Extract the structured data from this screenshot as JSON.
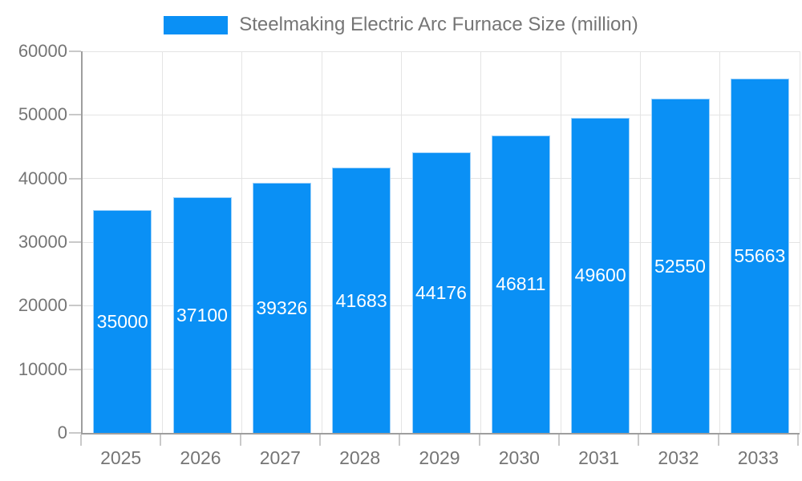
{
  "legend": {
    "label": "Steelmaking Electric Arc Furnace Size (million)"
  },
  "colors": {
    "bar_fill": "#0a90f5",
    "bar_border": "#a0d2fa",
    "bar_label_text": "#ffffff",
    "axis_line": "#9e9e9e",
    "tick_mark": "#c9c9c9",
    "gridline": "#e4e4e4",
    "tick_label_text": "#757575",
    "legend_text": "#757575",
    "background": "#ffffff"
  },
  "chart_data": {
    "type": "bar",
    "title": "Steelmaking Electric Arc Furnace Size (million)",
    "categories": [
      "2025",
      "2026",
      "2027",
      "2028",
      "2029",
      "2030",
      "2031",
      "2032",
      "2033"
    ],
    "values": [
      35000,
      37100,
      39326,
      41683,
      44176,
      46811,
      49600,
      52550,
      55663
    ],
    "series": [
      {
        "name": "Steelmaking Electric Arc Furnace Size (million)",
        "values": [
          35000,
          37100,
          39326,
          41683,
          44176,
          46811,
          49600,
          52550,
          55663
        ]
      }
    ],
    "xlabel": "",
    "ylabel": "",
    "ylim": [
      0,
      60000
    ],
    "yticks": [
      0,
      10000,
      20000,
      30000,
      40000,
      50000,
      60000
    ],
    "grid": true,
    "legend_position": "top-center",
    "value_labels_position": "inside-center"
  }
}
